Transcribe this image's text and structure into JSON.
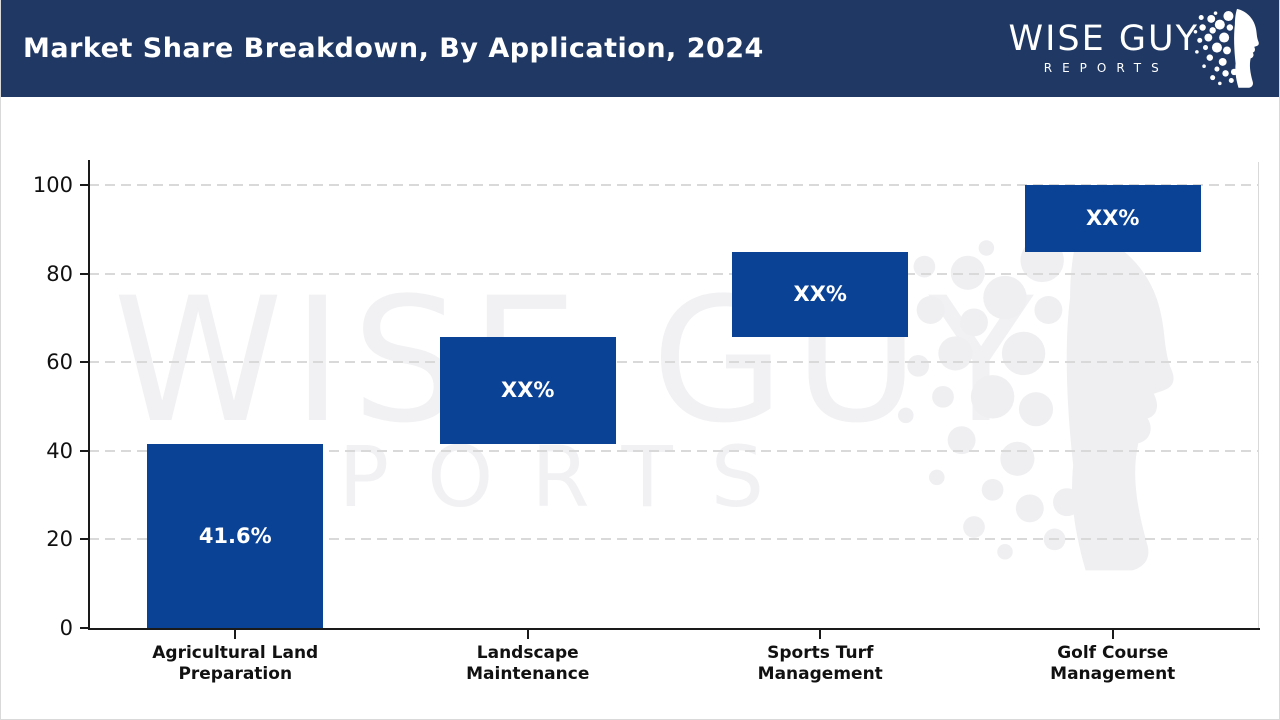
{
  "header": {
    "title": "Market Share Breakdown, By Application, 2024",
    "logo": {
      "name": "WISE GUY",
      "sub": "REPORTS"
    }
  },
  "watermark": {
    "line1": "WISE GUY",
    "line2": "REPORTS"
  },
  "chart_data": {
    "type": "bar",
    "subtype": "waterfall",
    "title": "Market Share Breakdown, By Application, 2024",
    "categories": [
      "Agricultural Land\nPreparation",
      "Landscape\nMaintenance",
      "Sports Turf\nManagement",
      "Golf Course\nManagement"
    ],
    "segments": [
      {
        "category": "Agricultural Land\nPreparation",
        "start": 0,
        "end": 41.6,
        "label": "41.6%"
      },
      {
        "category": "Landscape\nMaintenance",
        "start": 41.6,
        "end": 65.7,
        "label": "XX%"
      },
      {
        "category": "Sports Turf\nManagement",
        "start": 65.7,
        "end": 84.9,
        "label": "XX%"
      },
      {
        "category": "Golf Course\nManagement",
        "start": 84.9,
        "end": 100,
        "label": "XX%"
      }
    ],
    "y_axis": {
      "ticks": [
        0,
        20,
        40,
        60,
        80,
        100
      ],
      "ylim": [
        0,
        105
      ]
    },
    "xlabel": "",
    "ylabel": "",
    "grid": "dashed horizontal",
    "legend": "none",
    "colors": {
      "bar": "#0a4296",
      "header_bg": "#1f3864",
      "grid": "#d9d9d9",
      "axis": "#1a1a1a",
      "watermark": "#f1f1f4",
      "value_label": "#ffffff"
    }
  }
}
